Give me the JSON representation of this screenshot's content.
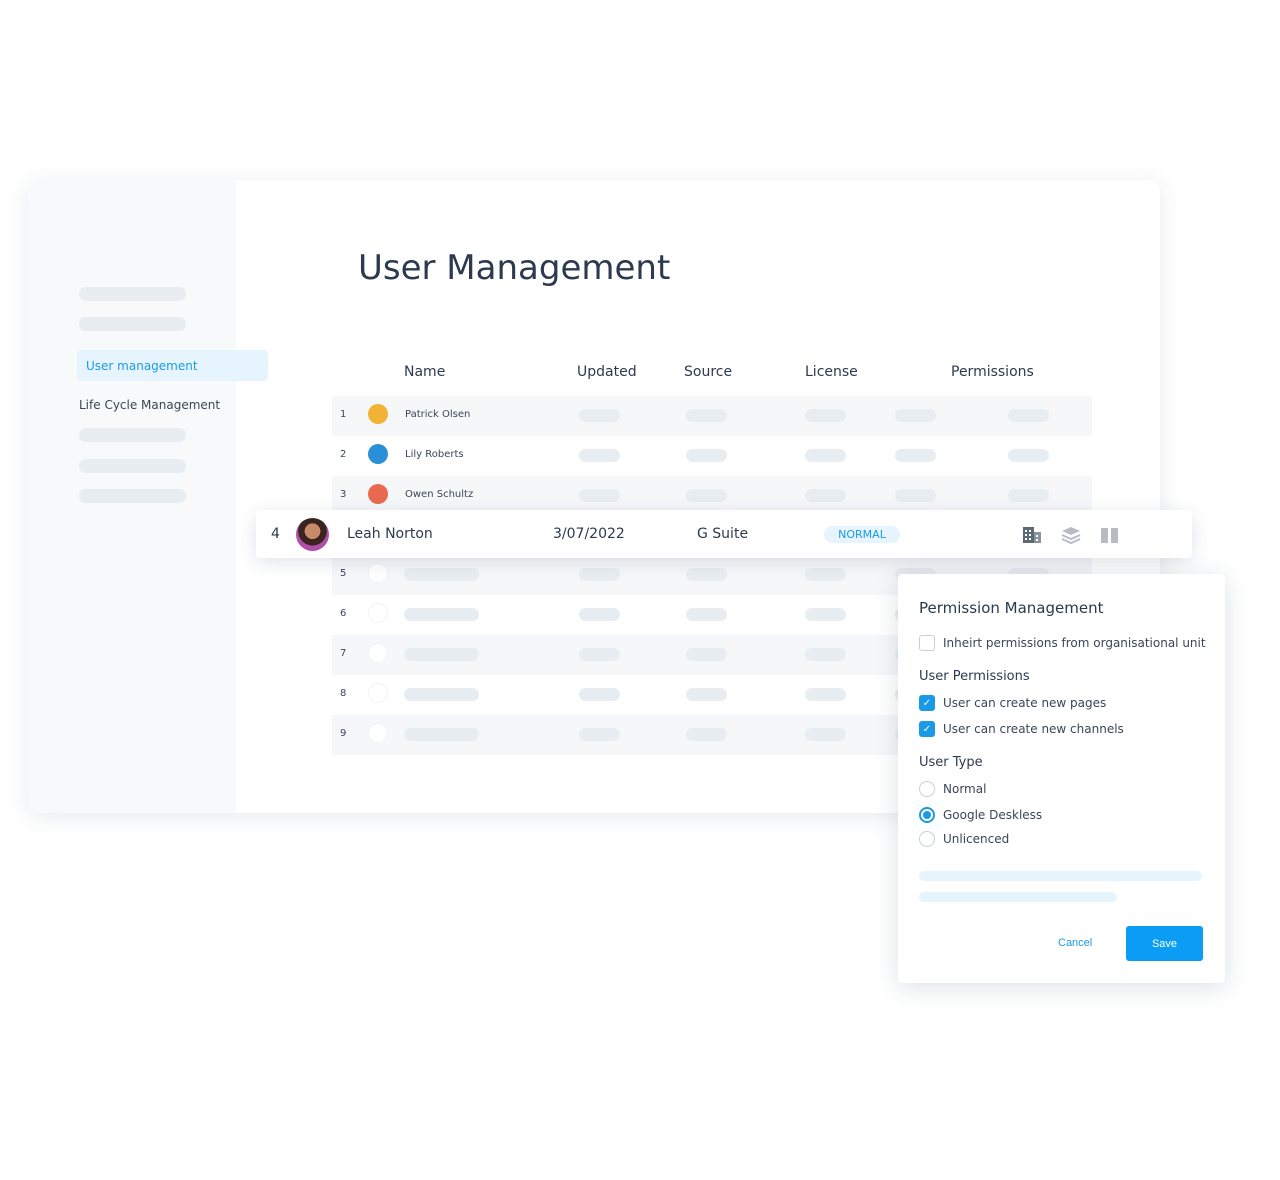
{
  "sidebar": {
    "items": [
      {
        "label": "User management",
        "active": true
      },
      {
        "label": "Life Cycle Management"
      }
    ]
  },
  "page": {
    "title": "User Management"
  },
  "table": {
    "columns": [
      "Name",
      "Updated",
      "Source",
      "License",
      "Permissions"
    ],
    "rows": [
      {
        "num": "1",
        "name": "Patrick Olsen"
      },
      {
        "num": "2",
        "name": "Lily Roberts"
      },
      {
        "num": "3",
        "name": "Owen Schultz"
      },
      {
        "num": "4",
        "name": "Leah Norton",
        "updated": "3/07/2022",
        "source": "G Suite",
        "license": "NORMAL"
      },
      {
        "num": "5"
      },
      {
        "num": "6"
      },
      {
        "num": "7"
      },
      {
        "num": "8"
      },
      {
        "num": "9"
      }
    ],
    "row_icons": [
      "building-icon",
      "layers-icon",
      "book-icon"
    ]
  },
  "panel": {
    "title": "Permission Management",
    "inherit": {
      "label": "Inheirt permissions from organisational unit",
      "checked": false
    },
    "user_permissions": {
      "heading": "User Permissions",
      "items": [
        {
          "label": "User can create new pages",
          "checked": true
        },
        {
          "label": "User can create new channels",
          "checked": true
        }
      ]
    },
    "user_type": {
      "heading": "User Type",
      "options": [
        "Normal",
        "Google Deskless",
        "Unlicenced"
      ],
      "selected": "Google Deskless"
    },
    "cancel": "Cancel",
    "save": "Save"
  },
  "colors": {
    "accent": "#0b9cf5",
    "text": "#2b3a4f"
  }
}
